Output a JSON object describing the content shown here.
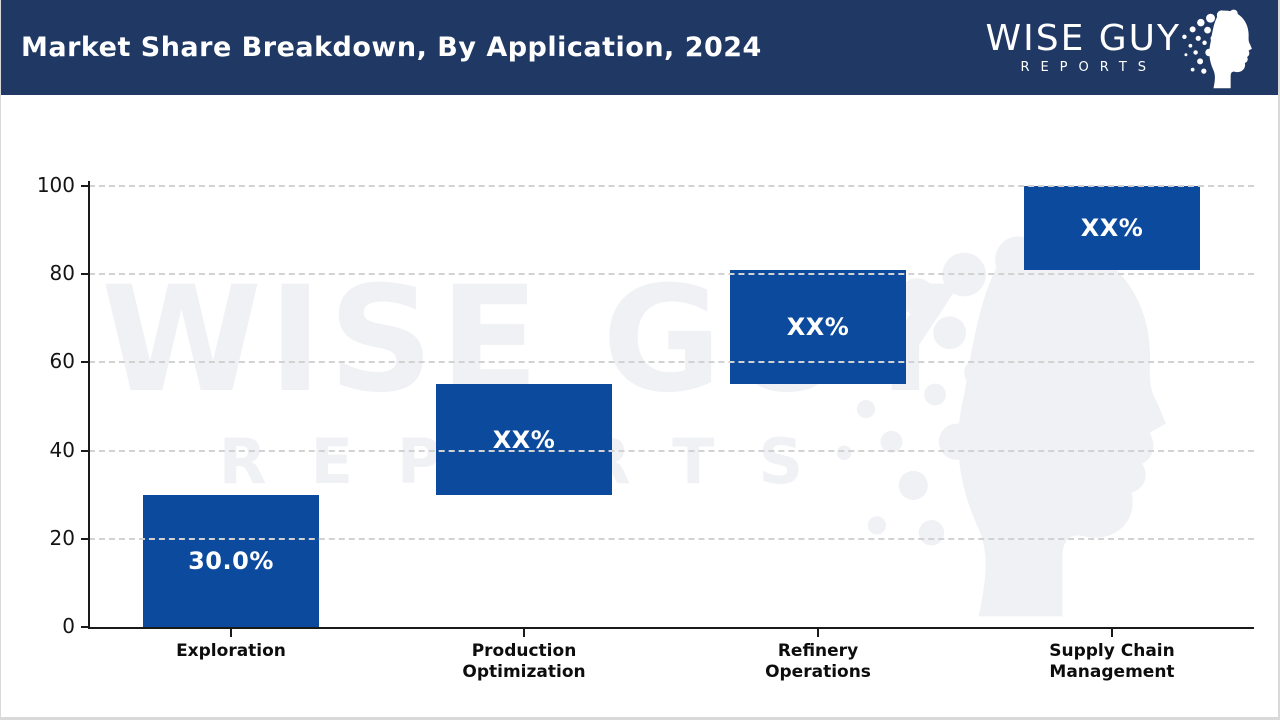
{
  "header": {
    "title": "Market Share Breakdown, By Application, 2024",
    "logo": {
      "line1": "WISE GUY",
      "line2": "REPORTS"
    }
  },
  "watermark": {
    "line1": "WISE GUY",
    "line2": "REPORTS"
  },
  "colors": {
    "header_bg": "#1f3864",
    "bar": "#0c4a9e",
    "bar_label": "#ffffff",
    "gridline": "#d2d2d2",
    "axis": "#1a1a1a",
    "watermark": "#f0f1f4"
  },
  "chart_data": {
    "type": "bar",
    "subtype": "waterfall",
    "title": "Market Share Breakdown, By Application, 2024",
    "xlabel": "",
    "ylabel": "",
    "categories": [
      "Exploration",
      "Production Optimization",
      "Refinery Operations",
      "Supply Chain Management"
    ],
    "category_lines": [
      [
        "Exploration"
      ],
      [
        "Production",
        "Optimization"
      ],
      [
        "Refinery",
        "Operations"
      ],
      [
        "Supply Chain",
        "Management"
      ]
    ],
    "segments": [
      {
        "category": "Exploration",
        "start": 0,
        "end": 30,
        "value": 30,
        "label": "30.0%"
      },
      {
        "category": "Production Optimization",
        "start": 30,
        "end": 55,
        "value": 25,
        "label": "XX%"
      },
      {
        "category": "Refinery Operations",
        "start": 55,
        "end": 81,
        "value": 26,
        "label": "XX%"
      },
      {
        "category": "Supply Chain Management",
        "start": 81,
        "end": 100,
        "value": 19,
        "label": "XX%"
      }
    ],
    "yticks": [
      0,
      20,
      40,
      60,
      80,
      100
    ],
    "ylim": [
      0,
      101
    ],
    "grid": "horizontal-dashed",
    "legend": "none"
  }
}
